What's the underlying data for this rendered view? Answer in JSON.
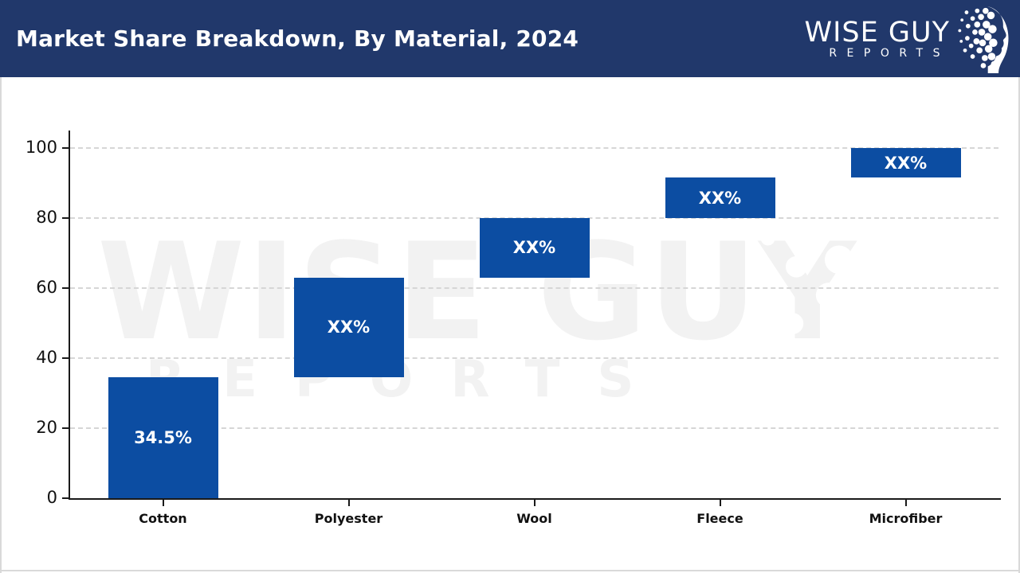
{
  "header": {
    "title": "Market Share Breakdown, By Material, 2024",
    "bg_color": "#21386B",
    "logo": {
      "line1": "WISE GUY",
      "line2": "REPORTS"
    }
  },
  "watermark": {
    "line1": "WISE GUY",
    "line2": "REPORTS"
  },
  "chart_data": {
    "type": "bar",
    "subtype": "waterfall",
    "title": "Market Share Breakdown, By Material, 2024",
    "categories": [
      "Cotton",
      "Polyester",
      "Wool",
      "Fleece",
      "Microfiber"
    ],
    "segments": [
      {
        "category": "Cotton",
        "start": 0,
        "end": 34.5,
        "label": "34.5%"
      },
      {
        "category": "Polyester",
        "start": 34.5,
        "end": 63,
        "label": "XX%"
      },
      {
        "category": "Wool",
        "start": 63,
        "end": 80,
        "label": "XX%"
      },
      {
        "category": "Fleece",
        "start": 80,
        "end": 91.5,
        "label": "XX%"
      },
      {
        "category": "Microfiber",
        "start": 91.5,
        "end": 100,
        "label": "XX%"
      }
    ],
    "y_ticks": [
      0,
      20,
      40,
      60,
      80,
      100
    ],
    "ylim": [
      0,
      105
    ],
    "xlabel": "",
    "ylabel": "",
    "grid": "horizontal-dashed",
    "legend": "none",
    "bar_color": "#0C4DA2",
    "bar_label_color": "#ffffff",
    "grid_color": "#d6d6d6",
    "axis_color": "#1a1a1a"
  }
}
